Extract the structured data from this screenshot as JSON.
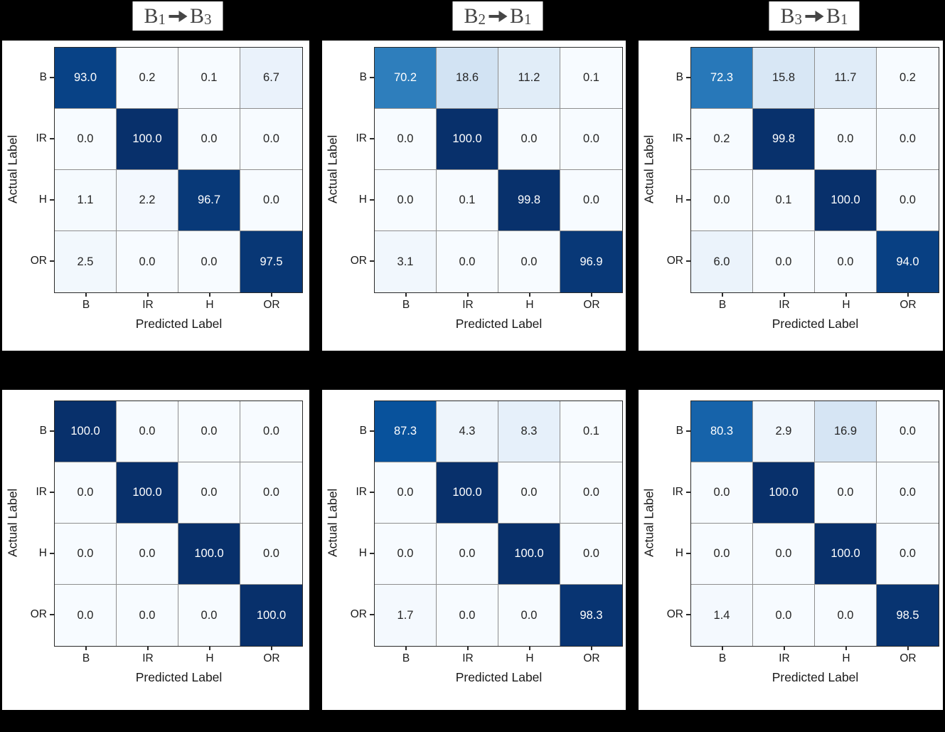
{
  "figure_background": "#000000",
  "panel_background": "#ffffff",
  "styles": {
    "title_text_color": "#454545",
    "grid_line_color": "#8e8e8e",
    "heatmap_border_color": "#2a2a2a",
    "cell_text_dark": "#262626",
    "cell_text_light": "#ffffff"
  },
  "column_titles": [
    {
      "label": "B1→B3",
      "from": "B",
      "from_sub": "1",
      "to": "B",
      "to_sub": "3"
    },
    {
      "label": "B2→B1",
      "from": "B",
      "from_sub": "2",
      "to": "B",
      "to_sub": "1"
    },
    {
      "label": "B3→B1",
      "from": "B",
      "from_sub": "3",
      "to": "B",
      "to_sub": "1"
    }
  ],
  "chart_data": [
    {
      "type": "heatmap",
      "row": 0,
      "col": 0,
      "title": "B1→B3",
      "xlabel": "Predicted Label",
      "ylabel": "Actual Label",
      "x": [
        "B",
        "IR",
        "H",
        "OR"
      ],
      "y": [
        "B",
        "IR",
        "H",
        "OR"
      ],
      "colormap": "Blues",
      "vmin": 0,
      "vmax": 100,
      "values": [
        [
          93.0,
          0.2,
          0.1,
          6.7
        ],
        [
          0.0,
          100.0,
          0.0,
          0.0
        ],
        [
          1.1,
          2.2,
          96.7,
          0.0
        ],
        [
          2.5,
          0.0,
          0.0,
          97.5
        ]
      ]
    },
    {
      "type": "heatmap",
      "row": 0,
      "col": 1,
      "title": "B2→B1",
      "xlabel": "Predicted Label",
      "ylabel": "Actual Label",
      "x": [
        "B",
        "IR",
        "H",
        "OR"
      ],
      "y": [
        "B",
        "IR",
        "H",
        "OR"
      ],
      "colormap": "Blues",
      "vmin": 0,
      "vmax": 100,
      "values": [
        [
          70.2,
          18.6,
          11.2,
          0.1
        ],
        [
          0.0,
          100.0,
          0.0,
          0.0
        ],
        [
          0.0,
          0.1,
          99.8,
          0.0
        ],
        [
          3.1,
          0.0,
          0.0,
          96.9
        ]
      ]
    },
    {
      "type": "heatmap",
      "row": 0,
      "col": 2,
      "title": "B3→B1",
      "xlabel": "Predicted Label",
      "ylabel": "Actual Label",
      "x": [
        "B",
        "IR",
        "H",
        "OR"
      ],
      "y": [
        "B",
        "IR",
        "H",
        "OR"
      ],
      "colormap": "Blues",
      "vmin": 0,
      "vmax": 100,
      "values": [
        [
          72.3,
          15.8,
          11.7,
          0.2
        ],
        [
          0.2,
          99.8,
          0.0,
          0.0
        ],
        [
          0.0,
          0.1,
          100.0,
          0.0
        ],
        [
          6.0,
          0.0,
          0.0,
          94.0
        ]
      ]
    },
    {
      "type": "heatmap",
      "row": 1,
      "col": 0,
      "title": null,
      "xlabel": "Predicted Label",
      "ylabel": "Actual Label",
      "x": [
        "B",
        "IR",
        "H",
        "OR"
      ],
      "y": [
        "B",
        "IR",
        "H",
        "OR"
      ],
      "colormap": "Blues",
      "vmin": 0,
      "vmax": 100,
      "values": [
        [
          100.0,
          0.0,
          0.0,
          0.0
        ],
        [
          0.0,
          100.0,
          0.0,
          0.0
        ],
        [
          0.0,
          0.0,
          100.0,
          0.0
        ],
        [
          0.0,
          0.0,
          0.0,
          100.0
        ]
      ]
    },
    {
      "type": "heatmap",
      "row": 1,
      "col": 1,
      "title": null,
      "xlabel": "Predicted Label",
      "ylabel": "Actual Label",
      "x": [
        "B",
        "IR",
        "H",
        "OR"
      ],
      "y": [
        "B",
        "IR",
        "H",
        "OR"
      ],
      "colormap": "Blues",
      "vmin": 0,
      "vmax": 100,
      "values": [
        [
          87.3,
          4.3,
          8.3,
          0.1
        ],
        [
          0.0,
          100.0,
          0.0,
          0.0
        ],
        [
          0.0,
          0.0,
          100.0,
          0.0
        ],
        [
          1.7,
          0.0,
          0.0,
          98.3
        ]
      ]
    },
    {
      "type": "heatmap",
      "row": 1,
      "col": 2,
      "title": null,
      "xlabel": "Predicted Label",
      "ylabel": "Actual Label",
      "x": [
        "B",
        "IR",
        "H",
        "OR"
      ],
      "y": [
        "B",
        "IR",
        "H",
        "OR"
      ],
      "colormap": "Blues",
      "vmin": 0,
      "vmax": 100,
      "values": [
        [
          80.3,
          2.9,
          16.9,
          0.0
        ],
        [
          0.0,
          100.0,
          0.0,
          0.0
        ],
        [
          0.0,
          0.0,
          100.0,
          0.0
        ],
        [
          1.4,
          0.0,
          0.0,
          98.5
        ]
      ]
    }
  ],
  "colormap_blues_stops": [
    [
      0.0,
      "#f7fbff"
    ],
    [
      0.125,
      "#deebf7"
    ],
    [
      0.25,
      "#c6dbef"
    ],
    [
      0.375,
      "#9ecae1"
    ],
    [
      0.5,
      "#6baed6"
    ],
    [
      0.625,
      "#4292c6"
    ],
    [
      0.75,
      "#2171b5"
    ],
    [
      0.875,
      "#08519c"
    ],
    [
      1.0,
      "#08306b"
    ]
  ],
  "white_text_threshold": 50
}
